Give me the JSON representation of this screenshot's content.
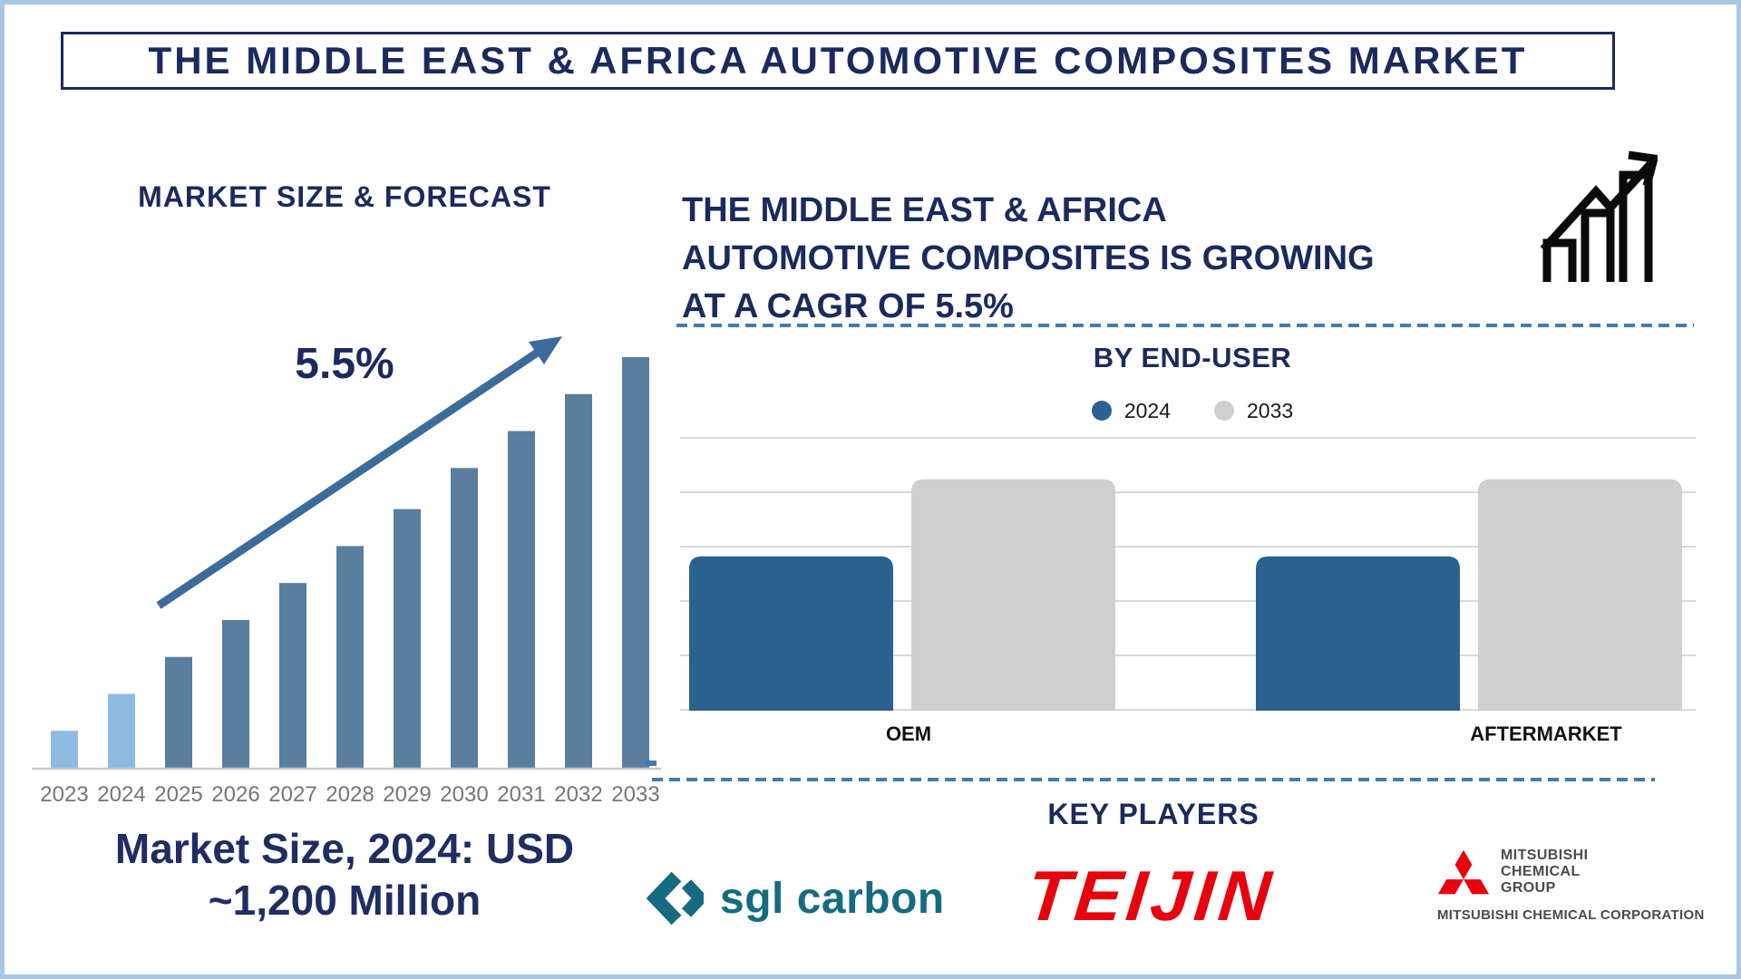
{
  "page": {
    "title": "THE MIDDLE EAST & AFRICA AUTOMOTIVE COMPOSITES MARKET"
  },
  "colors": {
    "navy": "#1b2a5e",
    "frame_blue": "#a9c6e4",
    "dashed_blue": "#4879ad",
    "arrow_blue": "#3c6b9c",
    "bar_light_blue": "#8fbbe3",
    "bar_steel_blue": "#5a7e9d",
    "bar_2024_blue": "#2b618f",
    "bar_2033_gray": "#cfcfcf",
    "gridline_gray": "#d9d9d9",
    "axis_gray": "#c9c9c9",
    "axis_label_gray": "#767676",
    "category_label_black": "#121212",
    "sgl_teal": "#156b80",
    "teijin_red": "#e8000d",
    "mitsubishi_red": "#e8000d",
    "mitsubishi_text_gray": "#4a4a50"
  },
  "market_chart": {
    "heading": "MARKET SIZE & FORECAST",
    "cagr_label": "5.5%",
    "caption_line1": "Market Size, 2024: USD",
    "caption_line2": "~1,200 Million"
  },
  "headline": {
    "line1": "THE MIDDLE EAST & AFRICA",
    "line2": "AUTOMOTIVE COMPOSITES IS GROWING",
    "line3": "AT A CAGR OF 5.5%"
  },
  "end_user_chart": {
    "title": "BY END-USER",
    "legend": [
      {
        "label": "2024",
        "color": "#2b618f"
      },
      {
        "label": "2033",
        "color": "#cfcfcf"
      }
    ],
    "categories": [
      "OEM",
      "AFTERMARKET"
    ]
  },
  "key_players": {
    "title": "KEY PLAYERS",
    "players": [
      {
        "name": "sgl carbon"
      },
      {
        "name": "TEIJIN"
      },
      {
        "name_line1": "MITSUBISHI",
        "name_line2": "CHEMICAL",
        "name_line3": "GROUP",
        "subtext": "MITSUBISHI CHEMICAL CORPORATION"
      }
    ]
  },
  "chart_data": [
    {
      "type": "bar",
      "title": "MARKET SIZE & FORECAST",
      "categories": [
        "2023",
        "2024",
        "2025",
        "2026",
        "2027",
        "2028",
        "2029",
        "2030",
        "2031",
        "2032",
        "2033"
      ],
      "values": [
        9,
        18,
        27,
        36,
        45,
        54,
        63,
        73,
        82,
        91,
        100
      ],
      "unit": "relative bar height, % of tallest bar (no y-axis shown)",
      "annotations": [
        "CAGR 5.5%",
        "Market Size, 2024: USD ~1,200 Million"
      ],
      "highlight": "2023 and 2024 bars light blue (#8fbbe3); 2025-2033 bars steel blue (#5a7e9d)",
      "xlabel": "",
      "ylabel": "",
      "grid": false,
      "legend_position": "none"
    },
    {
      "type": "bar",
      "title": "BY END-USER",
      "categories": [
        "OEM",
        "AFTERMARKET"
      ],
      "series": [
        {
          "name": "2024",
          "values": [
            56,
            56
          ],
          "color": "#2b618f"
        },
        {
          "name": "2033",
          "values": [
            84,
            84
          ],
          "color": "#cfcfcf"
        }
      ],
      "unit": "relative bar height, % of plot height (no y-axis shown)",
      "grid": true,
      "legend_position": "top"
    }
  ]
}
